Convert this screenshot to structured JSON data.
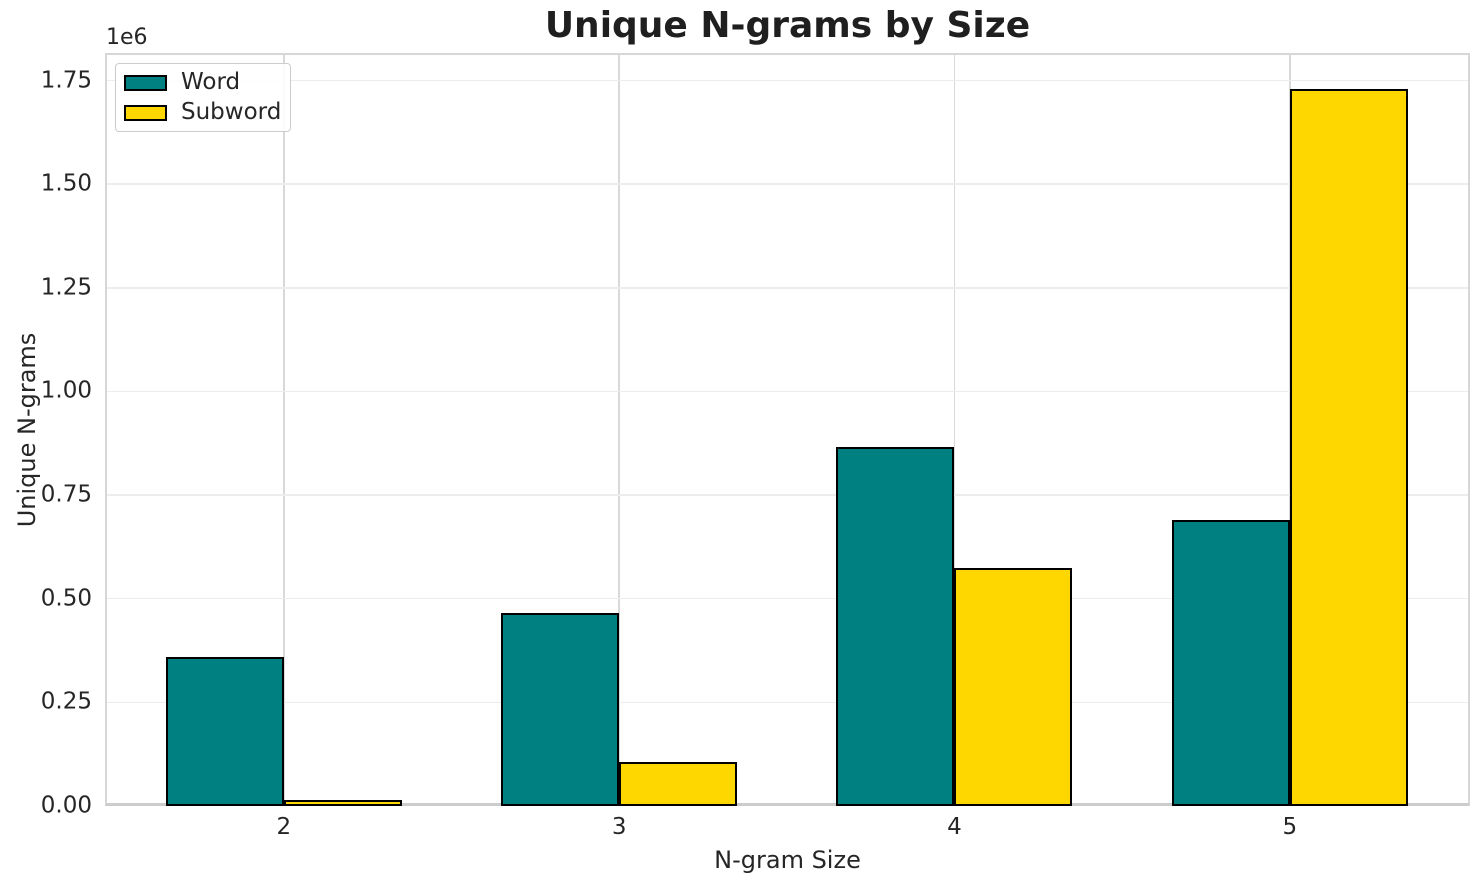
{
  "figure": {
    "background": "#ffffff"
  },
  "chart_data": {
    "type": "bar",
    "title": "Unique N-grams by Size",
    "xlabel": "N-gram Size",
    "ylabel": "Unique N-grams",
    "offset_text": "1e6",
    "categories": [
      "2",
      "3",
      "4",
      "5"
    ],
    "x_positions": [
      2,
      3,
      4,
      5
    ],
    "series": [
      {
        "name": "Word",
        "color": "#008080",
        "values": [
          360000,
          465000,
          865000,
          690000
        ]
      },
      {
        "name": "Subword",
        "color": "#FFD700",
        "values": [
          15000,
          107000,
          575000,
          1730000
        ]
      }
    ],
    "bar_edge_color": "#000000",
    "bar_width": 0.352,
    "xlim": [
      1.4665,
      5.5375
    ],
    "ylim": [
      0,
      1816500
    ],
    "yticks": [
      0,
      250000,
      500000,
      750000,
      1000000,
      1250000,
      1500000,
      1750000
    ],
    "ytick_labels": [
      "0.00",
      "0.25",
      "0.50",
      "0.75",
      "1.00",
      "1.25",
      "1.50",
      "1.75"
    ],
    "grid": true,
    "legend_position": "upper left"
  },
  "style": {
    "grid_color_h": "#ededed",
    "grid_color_v": "#d9d9d9",
    "spine_color": "#d7d7d7",
    "text_color": "#262626",
    "title_color": "#1f1f1f"
  }
}
